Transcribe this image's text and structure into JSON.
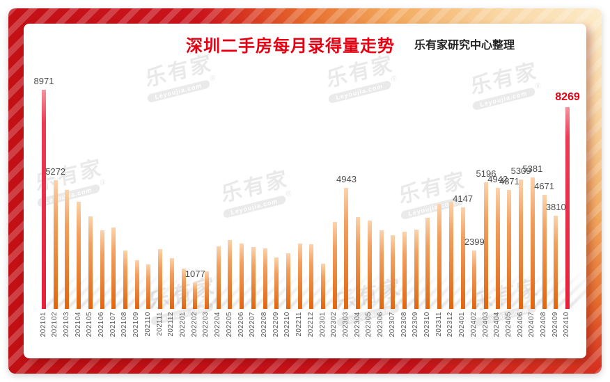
{
  "header": {
    "title": "深圳二手房每月录得量走势",
    "subtitle": "乐有家研究中心整理"
  },
  "watermark": {
    "brand": "乐有家",
    "domain": "Leyoujia.com",
    "registered_mark": "®"
  },
  "colors": {
    "title_red": "#e60012",
    "highlight_label_red": "#e60012",
    "bar_orange_top": "#fbd3ad",
    "bar_orange_mid": "#f2a05f",
    "bar_orange_bottom": "#e0660e",
    "bar_red_top": "#f5929d",
    "bar_red_mid": "#ec3b52",
    "bar_red_bottom": "#e6203a",
    "value_label_gray": "#4d4d4d",
    "axis_label_gray": "#555555",
    "frame_red": "#c9131b",
    "frame_cream": "#fdeccc",
    "watermark_gray": "#e9e9e9"
  },
  "chart_data": {
    "type": "bar",
    "title": "深圳二手房每月录得量走势",
    "source_note": "乐有家研究中心整理",
    "xlabel": "",
    "ylabel": "",
    "ylim": [
      0,
      9500
    ],
    "grid": false,
    "legend": false,
    "categories": [
      "202101",
      "202102",
      "202103",
      "202104",
      "202105",
      "202106",
      "202107",
      "202108",
      "202109",
      "202110",
      "202111",
      "202112",
      "202201",
      "202202",
      "202203",
      "202204",
      "202205",
      "202206",
      "202207",
      "202208",
      "202209",
      "202210",
      "202211",
      "202212",
      "202301",
      "202302",
      "202303",
      "202304",
      "202305",
      "202306",
      "202307",
      "202308",
      "202309",
      "202310",
      "202311",
      "202312",
      "202401",
      "202402",
      "202403",
      "202404",
      "202405",
      "202406",
      "202407",
      "202408",
      "202409",
      "202410"
    ],
    "values": [
      8971,
      5272,
      4860,
      4390,
      3780,
      3210,
      3320,
      2380,
      1980,
      1810,
      2440,
      2080,
      1650,
      1077,
      1530,
      2550,
      2810,
      2690,
      2530,
      2470,
      2120,
      2270,
      2690,
      2660,
      1840,
      3560,
      4943,
      3770,
      3620,
      3230,
      3020,
      3150,
      3250,
      3720,
      4310,
      4380,
      4147,
      2399,
      5196,
      4942,
      4871,
      5309,
      5381,
      4671,
      3810,
      8269
    ],
    "labeled_points": {
      "202101": 8971,
      "202102": 5272,
      "202202": 1077,
      "202303": 4943,
      "202401": 4147,
      "202402": 2399,
      "202403": 5196,
      "202404": 4942,
      "202405": 4871,
      "202406": 5309,
      "202407": 5381,
      "202408": 4671,
      "202409": 3810,
      "202410": 8269
    },
    "highlighted_categories": [
      "202101",
      "202410"
    ]
  }
}
